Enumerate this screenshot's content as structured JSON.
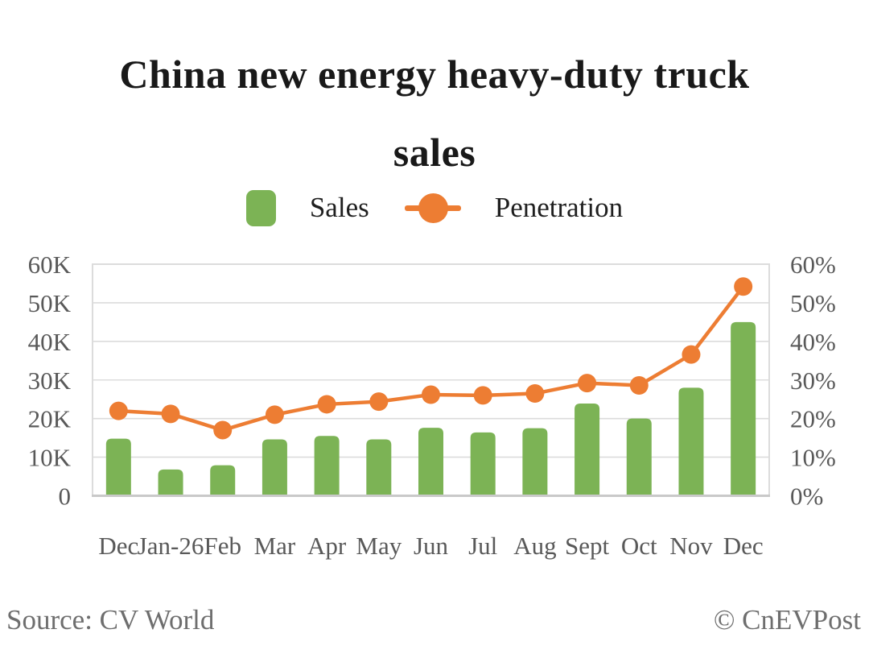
{
  "title": {
    "line1": "China new energy heavy-duty truck",
    "line2": "sales",
    "full": "China new energy heavy-duty truck sales"
  },
  "legend": {
    "sales_label": "Sales",
    "penetration_label": "Penetration"
  },
  "footer": {
    "source": "Source: CV World",
    "credit": "© CnEVPost"
  },
  "colors": {
    "sales_green": "#7CB355",
    "penetration_orange": "#ED7D33",
    "grid": "#DCDCDC",
    "axis_line": "#C9C9C9",
    "axis_text": "#595959",
    "title_text": "#191919",
    "footer_text": "#6E6E6E"
  },
  "chart_data": {
    "type": "bar",
    "subtype": "combo-bar-line-dual-axis",
    "categories": [
      "Dec",
      "Jan-26",
      "Feb",
      "Mar",
      "Apr",
      "May",
      "Jun",
      "Jul",
      "Aug",
      "Sept",
      "Oct",
      "Nov",
      "Dec"
    ],
    "series": [
      {
        "name": "Sales",
        "type": "bar",
        "axis": "left",
        "unit": "vehicles (thousands)",
        "values_k": [
          14.8,
          6.8,
          7.9,
          14.6,
          15.5,
          14.6,
          17.6,
          16.4,
          17.5,
          23.9,
          20.0,
          28.0,
          45.0
        ]
      },
      {
        "name": "Penetration",
        "type": "line",
        "axis": "right",
        "unit": "percent",
        "values_pct": [
          22.0,
          21.2,
          17.0,
          21.0,
          23.7,
          24.4,
          26.2,
          26.0,
          26.5,
          29.2,
          28.6,
          36.6,
          54.2
        ]
      }
    ],
    "y_left": {
      "min": 0,
      "max": 60,
      "ticks": [
        "0",
        "10K",
        "20K",
        "30K",
        "40K",
        "50K",
        "60K"
      ]
    },
    "y_right": {
      "min": 0,
      "max": 60,
      "ticks": [
        "0%",
        "10%",
        "20%",
        "30%",
        "40%",
        "50%",
        "60%"
      ]
    },
    "grid": true,
    "legend_position": "top"
  }
}
